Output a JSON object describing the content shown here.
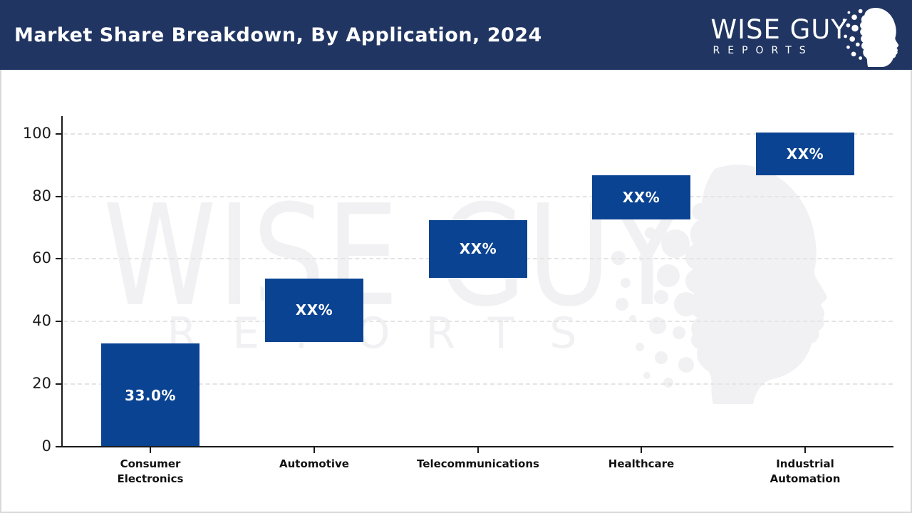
{
  "header": {
    "title": "Market Share Breakdown, By Application, 2024",
    "logo": {
      "line1": "WISE GUY",
      "line2": "REPORTS"
    }
  },
  "watermark": {
    "line1": "WISE GUY",
    "line2": "REPORTS"
  },
  "chart_data": {
    "type": "bar",
    "subtype": "waterfall-floating-bars",
    "title": "Market Share Breakdown, By Application, 2024",
    "categories": [
      "Consumer\nElectronics",
      "Automotive",
      "Telecommunications",
      "Healthcare",
      "Industrial\nAutomation"
    ],
    "segments": [
      {
        "label": "33.0%",
        "start": 0,
        "end": 33.0
      },
      {
        "label": "XX%",
        "start": 33.5,
        "end": 53.7
      },
      {
        "label": "XX%",
        "start": 54.0,
        "end": 72.4
      },
      {
        "label": "XX%",
        "start": 72.6,
        "end": 86.7
      },
      {
        "label": "XX%",
        "start": 86.8,
        "end": 100.3
      }
    ],
    "estimated_segment_sizes": [
      33.0,
      20.2,
      18.4,
      14.1,
      13.5
    ],
    "unit": "percent",
    "yticks": [
      0,
      20,
      40,
      60,
      80,
      100
    ],
    "ylim": [
      0,
      105
    ],
    "grid": "horizontal-dashed",
    "legend": "none",
    "bar_color": "#0a4392",
    "label_color": "#ffffff",
    "axis_color": "#1a1a1a",
    "grid_color": "#e4e4e4",
    "header_color": "#203562",
    "watermark_color": "#f1f1f3"
  }
}
